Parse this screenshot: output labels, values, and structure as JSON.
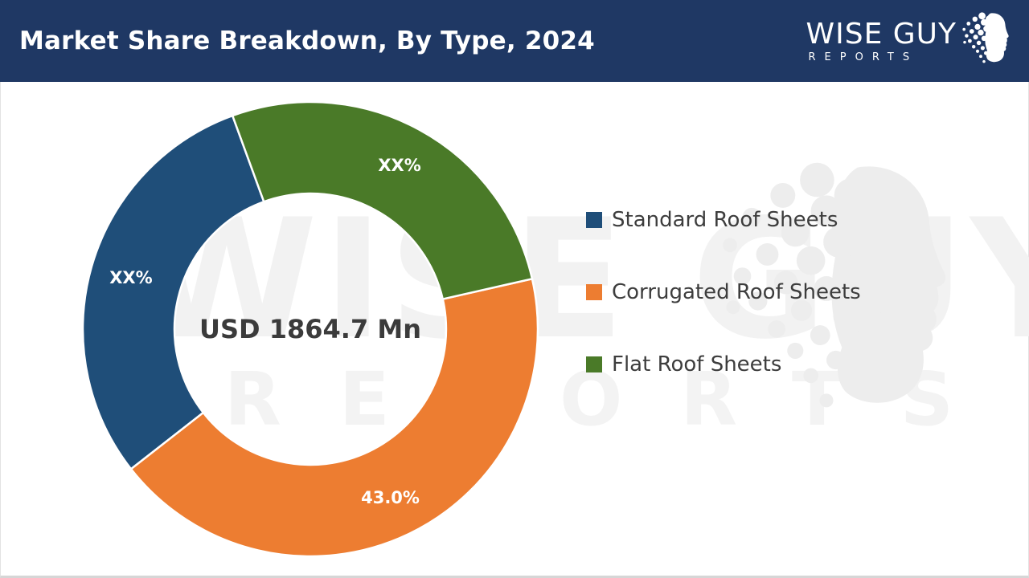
{
  "header": {
    "title": "Market Share Breakdown, By Type, 2024",
    "bg_color": "#1F3864",
    "logo": {
      "line1": "WISE GUY",
      "line2": "REPORTS"
    }
  },
  "watermark": {
    "text1": "WISE GUY",
    "text2": "REPORTS"
  },
  "chart_data": {
    "type": "pie",
    "subtype": "donut",
    "title": "Market Share Breakdown, By Type, 2024",
    "center_label": "USD 1864.7 Mn",
    "start_angle": 110,
    "direction": "counterclockwise",
    "inner_radius_ratio": 0.597,
    "label_radius_ratio": 0.82,
    "legend_position": "right",
    "slices": [
      {
        "name": "Standard Roof Sheets",
        "value": 30.0,
        "display_label": "XX%",
        "color": "#1F4E79"
      },
      {
        "name": "Corrugated Roof Sheets",
        "value": 43.0,
        "display_label": "43.0%",
        "color": "#ED7D31"
      },
      {
        "name": "Flat Roof Sheets",
        "value": 27.0,
        "display_label": "XX%",
        "color": "#4A7A28"
      }
    ],
    "colors": {
      "slice_border": "#ffffff",
      "center_text": "#3b3b3b",
      "legend_text": "#3d3d3d"
    }
  }
}
